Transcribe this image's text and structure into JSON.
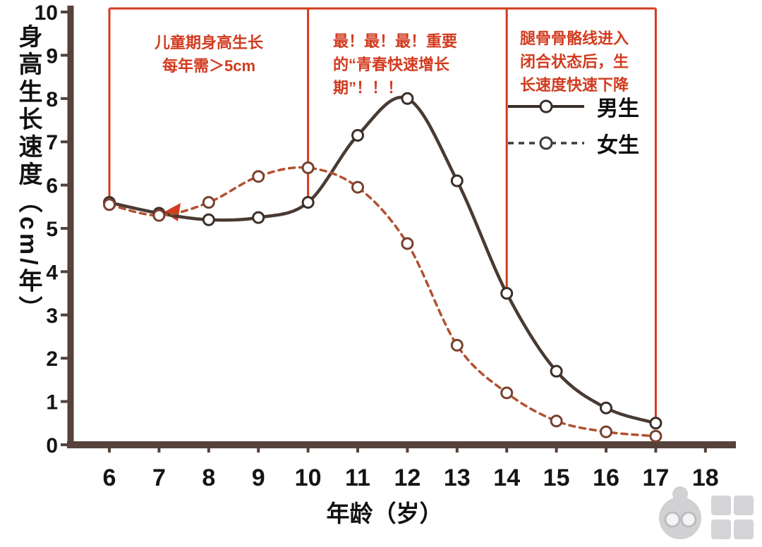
{
  "chart_data": {
    "type": "line",
    "title": "",
    "xlabel": "年龄（岁）",
    "ylabel": "身高生长速度（cm/年）",
    "x": [
      6,
      7,
      8,
      9,
      10,
      11,
      12,
      13,
      14,
      15,
      16,
      17
    ],
    "x_ticks": [
      6,
      7,
      8,
      9,
      10,
      11,
      12,
      13,
      14,
      15,
      16,
      17,
      18
    ],
    "y_ticks": [
      0,
      1,
      2,
      3,
      4,
      5,
      6,
      7,
      8,
      9,
      10
    ],
    "xlim": [
      6,
      18
    ],
    "ylim": [
      0,
      10
    ],
    "grid": false,
    "legend_position": "upper-right",
    "series": [
      {
        "key": "boys",
        "name": "男生",
        "style": "solid",
        "color": "#493a32",
        "marker_color": "#3a2e28",
        "width": 4.5,
        "dash": "",
        "marker": "open-circle",
        "values": [
          5.6,
          5.35,
          5.2,
          5.25,
          5.6,
          7.15,
          8.0,
          6.1,
          3.5,
          1.7,
          0.85,
          0.5
        ]
      },
      {
        "key": "girls",
        "name": "女生",
        "style": "dashed",
        "color": "#b2502f",
        "marker_color": "#77412f",
        "width": 3.5,
        "dash": "8 7",
        "marker": "open-circle",
        "values": [
          5.55,
          5.3,
          5.6,
          6.2,
          6.4,
          5.95,
          4.65,
          2.3,
          1.2,
          0.55,
          0.3,
          0.2
        ]
      }
    ]
  },
  "annotations": {
    "color": "#d23b1f",
    "bracket": {
      "from": 6,
      "to": 17,
      "top_y": 10
    },
    "guides": [
      {
        "x": 6,
        "y_to": 5.6
      },
      {
        "x": 10,
        "y_to": 5.6
      },
      {
        "x": 14,
        "y_to": 3.5
      },
      {
        "x": 17,
        "y_to": 0.5
      }
    ],
    "box1": {
      "lines": [
        "儿童期身高生长",
        "每年需＞5cm"
      ]
    },
    "box2": {
      "lines": [
        "最！最！最！重要",
        "的“青春快速增长",
        "期”！！！"
      ]
    },
    "box3": {
      "lines": [
        "腿骨骨骼线进入",
        "闭合状态后，生",
        "长速度快速下降"
      ]
    }
  },
  "axis": {
    "color": "#55423a",
    "tick_label_color": "#141414"
  },
  "legend": {
    "items": [
      {
        "label": "男生",
        "style": "solid"
      },
      {
        "label": "女生",
        "style": "dashed"
      }
    ]
  }
}
